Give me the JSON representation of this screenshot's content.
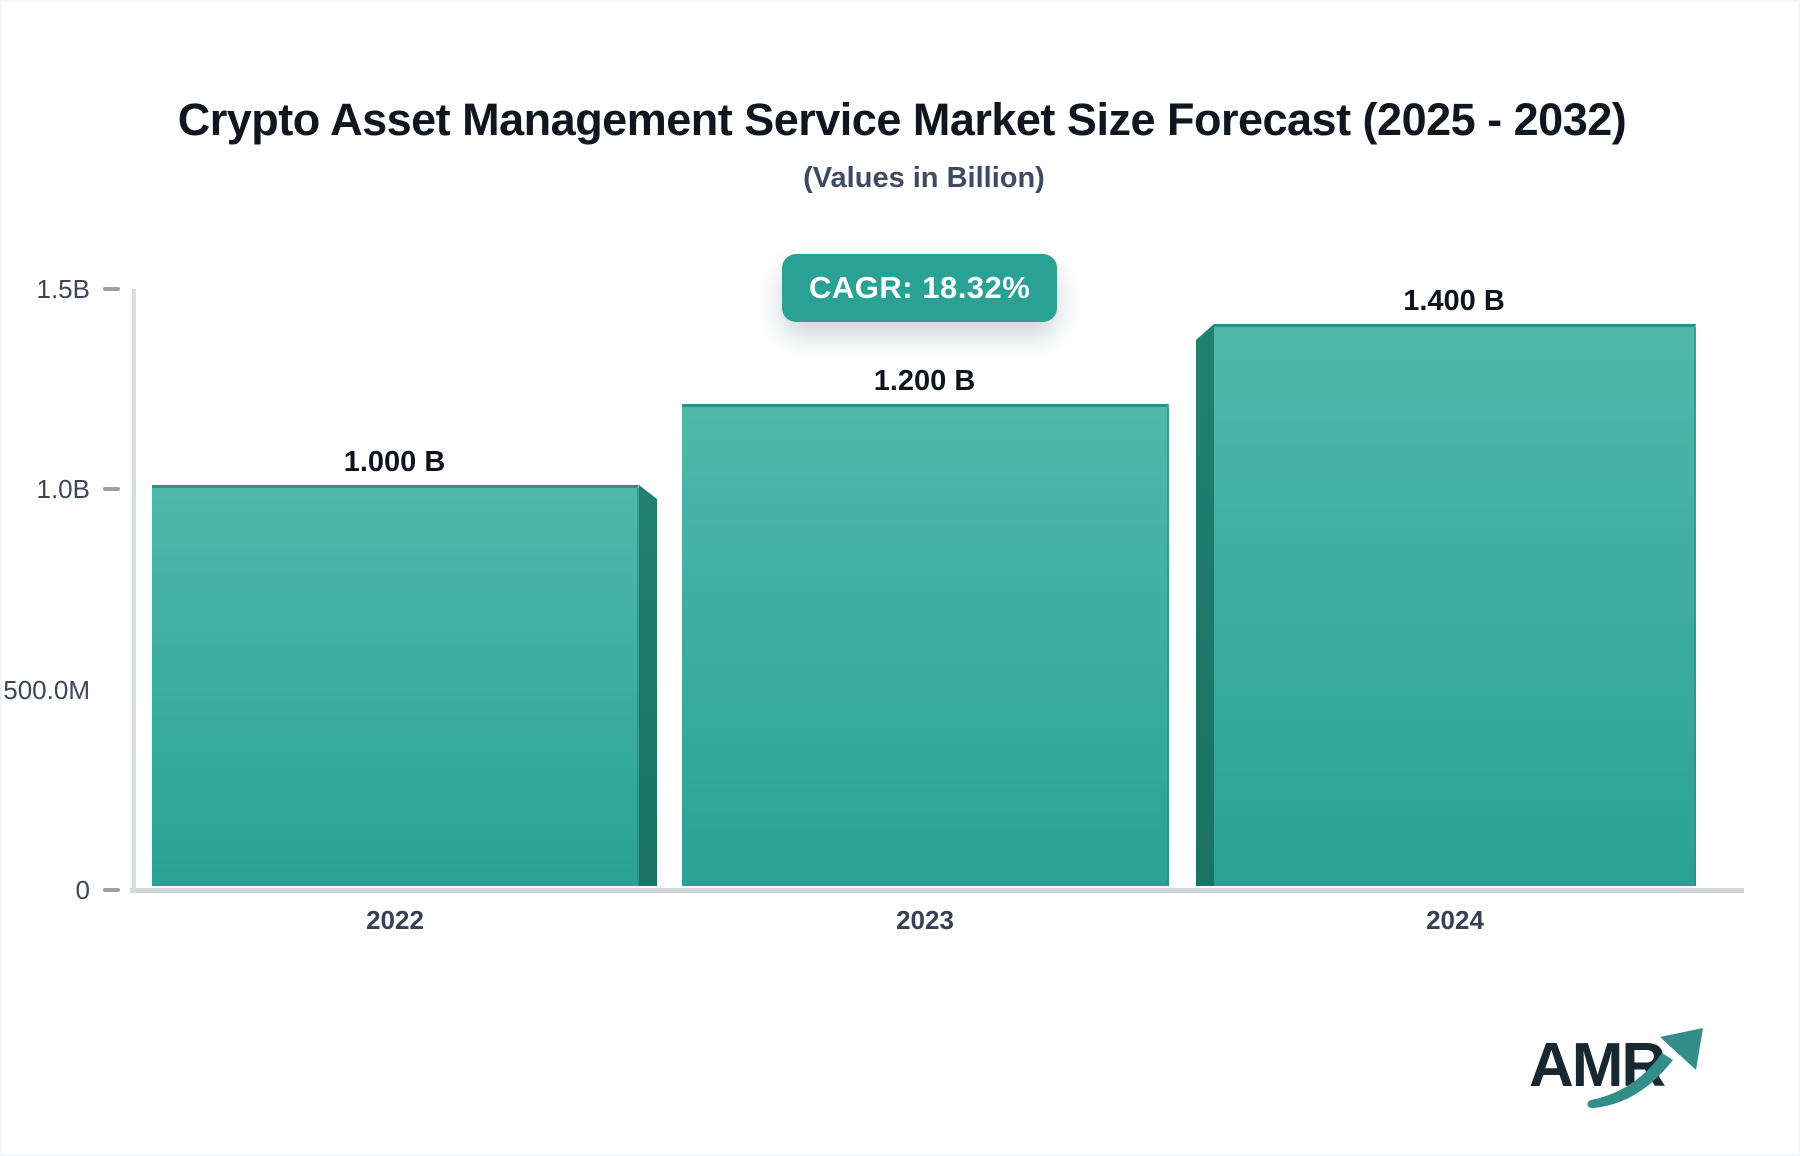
{
  "header": {
    "title": "Crypto Asset Management Service Market Size Forecast (2025 - 2032)",
    "subtitle": "(Values in Billion)"
  },
  "badge": {
    "label": "CAGR: 18.32%"
  },
  "y_axis": {
    "ticks": [
      {
        "label": "1.5B",
        "dash": true
      },
      {
        "label": "1.0B",
        "dash": true
      },
      {
        "label": "500.0M",
        "dash": false
      },
      {
        "label": "0",
        "dash": true
      }
    ]
  },
  "bars": [
    {
      "year": "2022",
      "value_label": "1.000 B"
    },
    {
      "year": "2023",
      "value_label": "1.200 B"
    },
    {
      "year": "2024",
      "value_label": "1.400 B"
    }
  ],
  "logo": {
    "text": "AMR"
  },
  "colors": {
    "bar_top": "#4fb8ab",
    "bar_bottom": "#29a295",
    "bar_side": "#1f7c6f",
    "badge_bg": "#2aa195",
    "axis_line": "#d9dde3"
  },
  "chart_data": {
    "type": "bar",
    "title": "Crypto Asset Management Service Market Size Forecast (2025 - 2032)",
    "subtitle": "(Values in Billion)",
    "categories": [
      "2022",
      "2023",
      "2024"
    ],
    "values": [
      1.0,
      1.2,
      1.4
    ],
    "unit": "Billion",
    "value_labels": [
      "1.000 B",
      "1.200 B",
      "1.400 B"
    ],
    "ylim": [
      0,
      1.5
    ],
    "y_ticks": [
      "0",
      "500.0M",
      "1.0B",
      "1.5B"
    ],
    "xlabel": "",
    "ylabel": "",
    "grid": false,
    "legend": false,
    "cagr": "18.32%"
  }
}
